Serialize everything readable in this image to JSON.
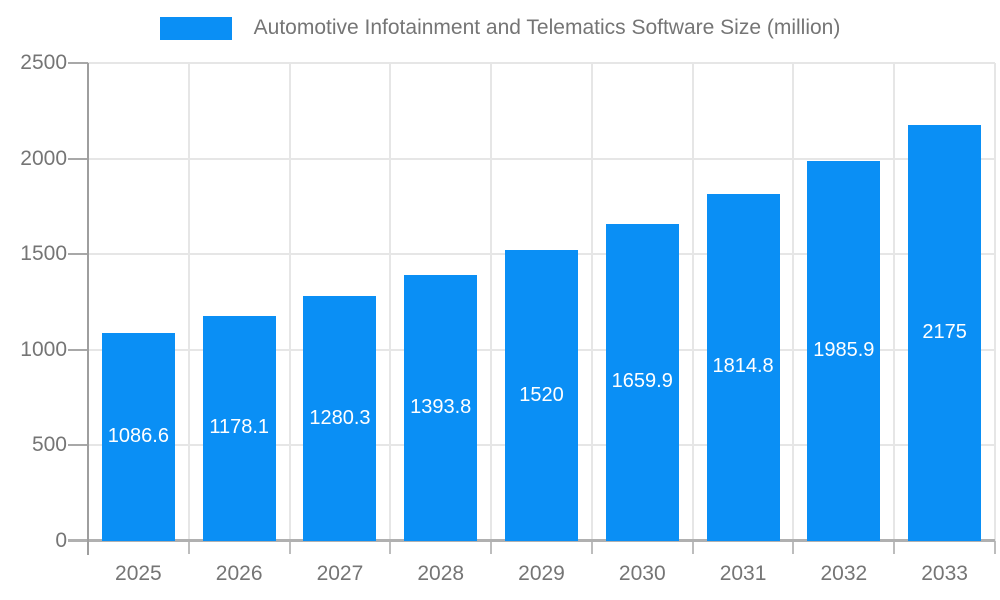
{
  "legend": {
    "label": "Automotive Infotainment and Telematics Software Size (million)",
    "swatch_color": "#0a8ff5"
  },
  "chart_data": {
    "type": "bar",
    "title": "Automotive Infotainment and Telematics Software Size (million)",
    "categories": [
      "2025",
      "2026",
      "2027",
      "2028",
      "2029",
      "2030",
      "2031",
      "2032",
      "2033"
    ],
    "values": [
      1086.6,
      1178.1,
      1280.3,
      1393.8,
      1520,
      1659.9,
      1814.8,
      1985.9,
      2175
    ],
    "value_labels": [
      "1086.6",
      "1178.1",
      "1280.3",
      "1393.8",
      "1520",
      "1659.9",
      "1814.8",
      "1985.9",
      "2175"
    ],
    "xlabel": "",
    "ylabel": "",
    "ylim": [
      0,
      2500
    ],
    "yticks": [
      0,
      500,
      1000,
      1500,
      2000,
      2500
    ],
    "grid": true,
    "legend_position": "top",
    "bar_color": "#0a8ff5",
    "value_label_color": "#ffffff",
    "axis_text_color": "#757575",
    "gridline_color": "#e6e6e6",
    "axis_line_color": "#9e9e9e"
  }
}
